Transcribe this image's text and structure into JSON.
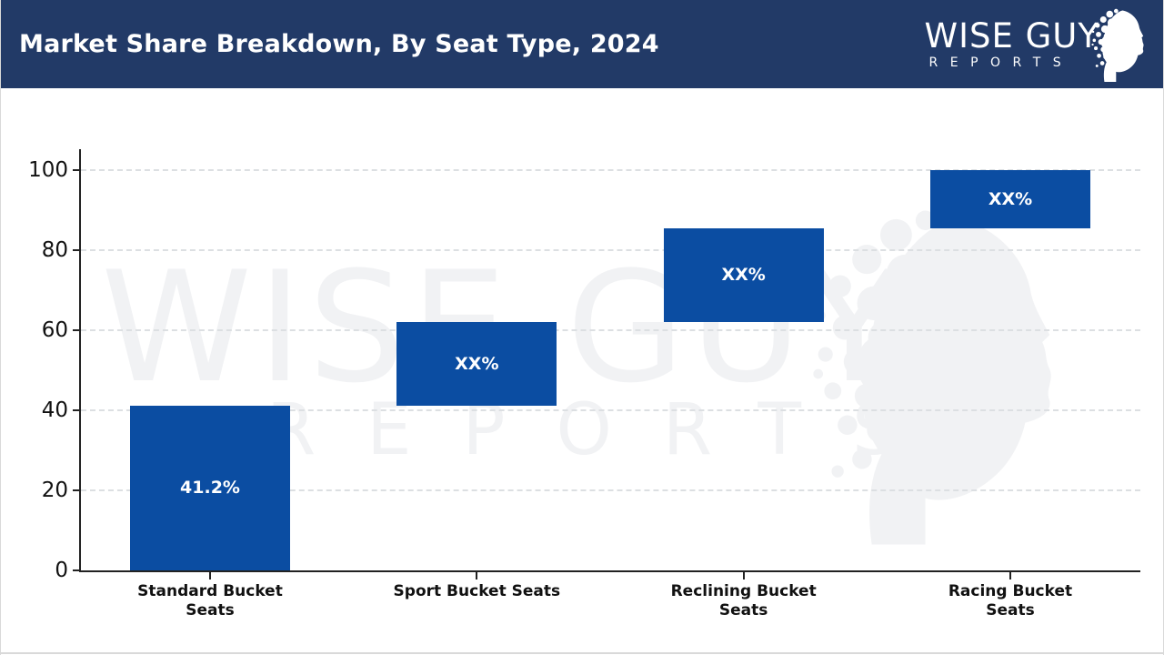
{
  "header": {
    "title": "Market Share Breakdown, By Seat Type, 2024",
    "logo": {
      "name": "WISE GUY",
      "subtitle": "REPORTS"
    }
  },
  "watermark": {
    "name": "WISE GUY",
    "subtitle": "REPORTS"
  },
  "chart_data": {
    "type": "bar",
    "subtype": "waterfall",
    "title": "Market Share Breakdown, By Seat Type, 2024",
    "categories": [
      "Standard Bucket Seats",
      "Sport Bucket Seats",
      "Reclining Bucket Seats",
      "Racing Bucket Seats"
    ],
    "category_label_lines": [
      [
        "Standard Bucket",
        "Seats"
      ],
      [
        "Sport Bucket Seats"
      ],
      [
        "Reclining Bucket",
        "Seats"
      ],
      [
        "Racing Bucket",
        "Seats"
      ]
    ],
    "series": [
      {
        "name": "Market share (%)",
        "segments": [
          {
            "category": "Standard Bucket Seats",
            "start": 0,
            "end": 41.2,
            "label": "41.2%"
          },
          {
            "category": "Sport Bucket Seats",
            "start": 41.2,
            "end": 62,
            "label": "XX%"
          },
          {
            "category": "Reclining Bucket Seats",
            "start": 62,
            "end": 85.5,
            "label": "XX%"
          },
          {
            "category": "Racing Bucket Seats",
            "start": 85.5,
            "end": 100,
            "label": "XX%"
          }
        ]
      }
    ],
    "ylim": [
      0,
      100
    ],
    "yticks": [
      0,
      20,
      40,
      60,
      80,
      100
    ],
    "xlabel": "",
    "ylabel": "",
    "grid": "horizontal-dashed",
    "legend": "none",
    "colors": {
      "bar": "#0b4da2",
      "bar_label": "#ffffff",
      "grid": "#dcdfe2",
      "axis": "#222222",
      "header_bg": "#223a67",
      "watermark": "#f1f2f4"
    }
  }
}
